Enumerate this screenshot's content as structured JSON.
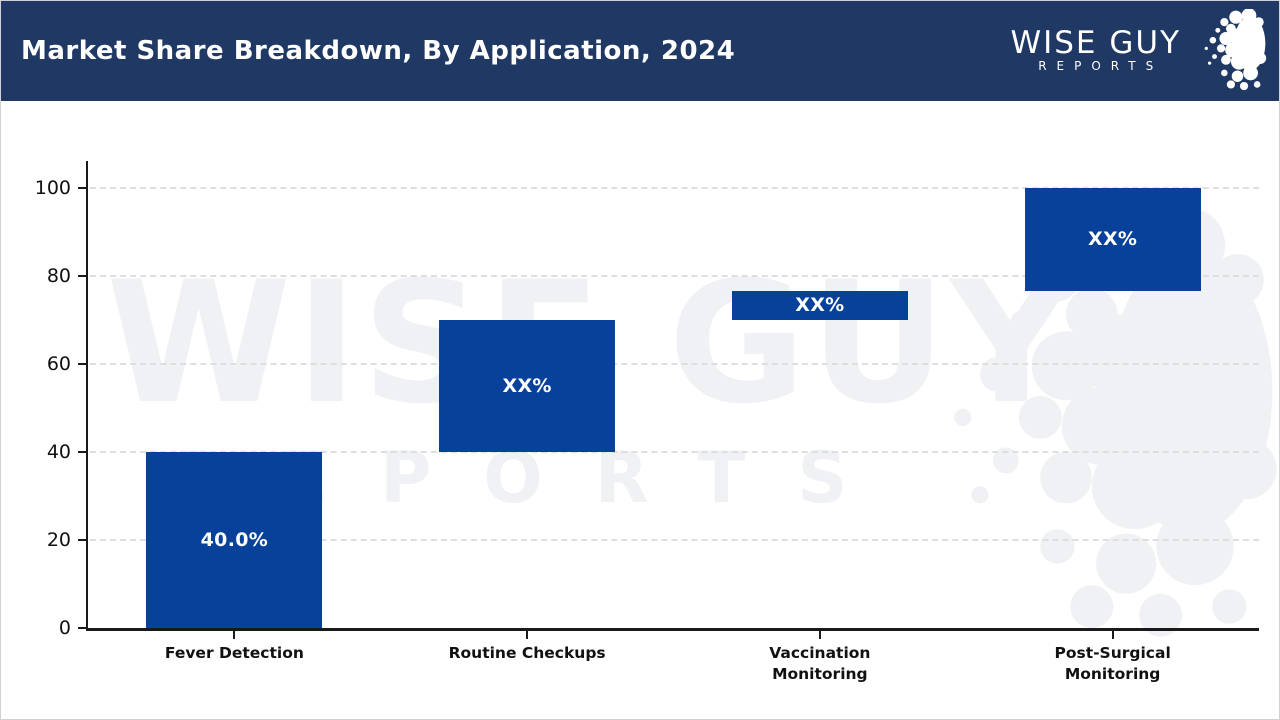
{
  "header": {
    "title": "Market Share Breakdown, By Application, 2024",
    "logo": {
      "line1": "WISE GUY",
      "line2": "REPORTS"
    }
  },
  "watermark": {
    "line1": "WISE GUY",
    "line2": "REPORTS"
  },
  "colors": {
    "header_bg": "#1f3864",
    "bar_fill": "#084199",
    "bar_label_text": "#ffffff",
    "axis": "#1a1a1a",
    "tick_label": "#111111",
    "gridline": "#dcdee0",
    "watermark": "#f0f1f4",
    "page_border": "#cfd2d6"
  },
  "chart_data": {
    "type": "bar",
    "subtype": "floating-segment-waterfall",
    "title": "Market Share Breakdown, By Application, 2024",
    "categories": [
      "Fever Detection",
      "Routine Checkups",
      "Vaccination Monitoring",
      "Post-Surgical Monitoring"
    ],
    "category_label_lines": [
      [
        "Fever Detection"
      ],
      [
        "Routine Checkups"
      ],
      [
        "Vaccination",
        "Monitoring"
      ],
      [
        "Post-Surgical",
        "Monitoring"
      ]
    ],
    "segments": [
      {
        "category": "Fever Detection",
        "start": 0,
        "end": 40,
        "value": 40.0,
        "label": "40.0%"
      },
      {
        "category": "Routine Checkups",
        "start": 40,
        "end": 70,
        "value": 30.0,
        "label": "XX%"
      },
      {
        "category": "Vaccination Monitoring",
        "start": 70,
        "end": 76.5,
        "value": 6.5,
        "label": "XX%"
      },
      {
        "category": "Post-Surgical Monitoring",
        "start": 76.5,
        "end": 100,
        "value": 23.5,
        "label": "XX%"
      }
    ],
    "y_ticks": [
      0,
      20,
      40,
      60,
      80,
      100
    ],
    "ylim": [
      0,
      106
    ],
    "xlabel": "",
    "ylabel": "",
    "grid": "horizontal-dashed",
    "legend": "none"
  }
}
